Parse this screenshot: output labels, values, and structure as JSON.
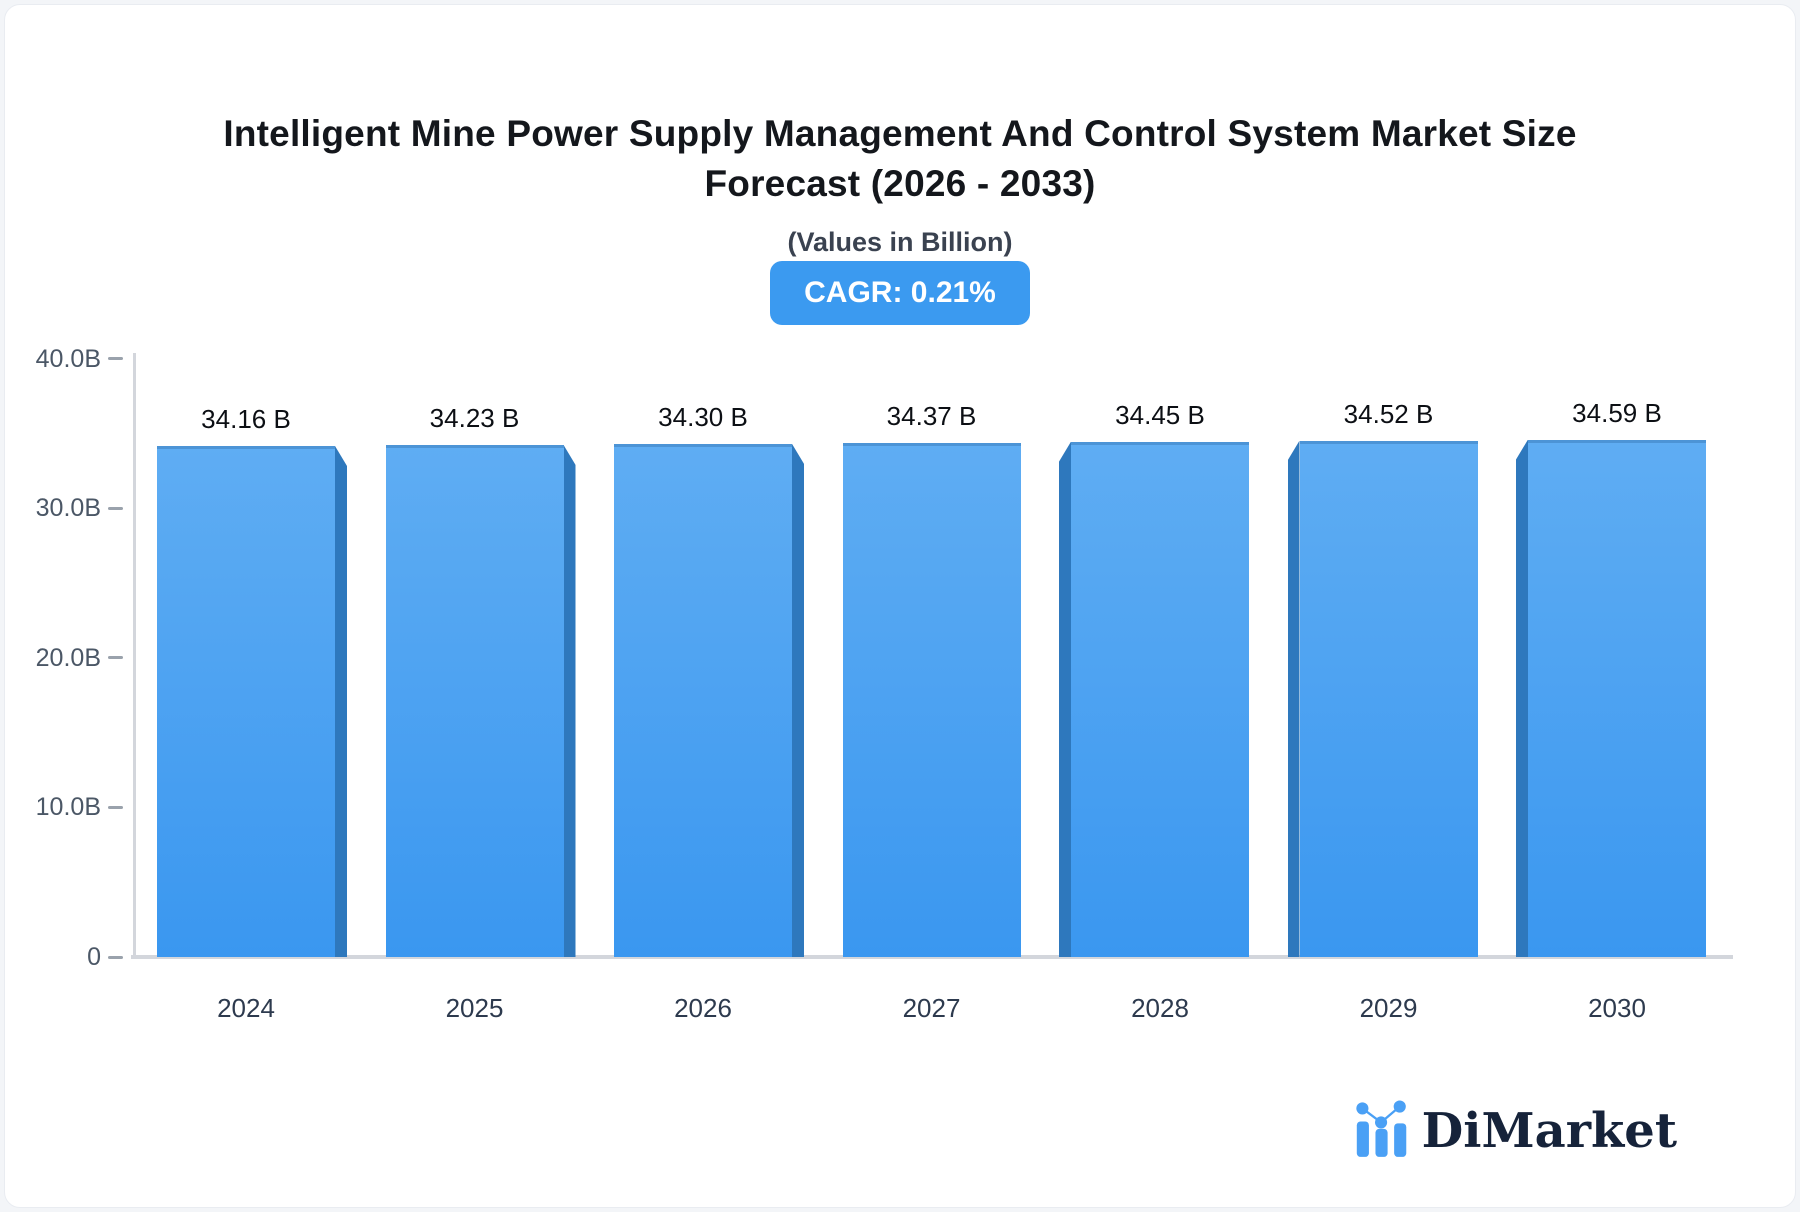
{
  "header": {
    "title_line1": "Intelligent Mine Power Supply Management And Control System Market Size",
    "title_line2": "Forecast (2026 - 2033)",
    "subtitle": "(Values in Billion)",
    "cagr_badge": "CAGR: 0.21%"
  },
  "chart_data": {
    "type": "bar",
    "title": "Intelligent Mine Power Supply Management And Control System Market Size Forecast (2026 - 2033)",
    "subtitle": "(Values in Billion)",
    "cagr_label": "CAGR: 0.21%",
    "unit": "Billion",
    "categories": [
      "2024",
      "2025",
      "2026",
      "2027",
      "2028",
      "2029",
      "2030"
    ],
    "values": [
      34.16,
      34.23,
      34.3,
      34.37,
      34.45,
      34.52,
      34.59
    ],
    "bar_labels": [
      "34.16 B",
      "34.23 B",
      "34.30 B",
      "34.37 B",
      "34.45 B",
      "34.52 B",
      "34.59 B"
    ],
    "ylim": [
      0,
      40
    ],
    "y_ticks": [
      {
        "label": "40.0B",
        "value": 40
      },
      {
        "label": "30.0B",
        "value": 30
      },
      {
        "label": "20.0B",
        "value": 20
      },
      {
        "label": "10.0B",
        "value": 10
      },
      {
        "label": "0",
        "value": 0
      }
    ],
    "grid": false,
    "legend": false,
    "xlabel": "",
    "ylabel": "",
    "colors": {
      "bar_face_top": "#5FADF3",
      "bar_face_bottom": "#3A97F0",
      "bar_side": "#2E78BD",
      "badge_background": "#3B9AF0",
      "axis_line": "#D3D6DC",
      "tick_dash": "#9AA2AC"
    }
  },
  "branding": {
    "logo_text": "DiMarket",
    "logo_icon": "bar-chart-dots-icon",
    "logo_icon_color": "#4AA0F5",
    "logo_text_color": "#16233A"
  }
}
